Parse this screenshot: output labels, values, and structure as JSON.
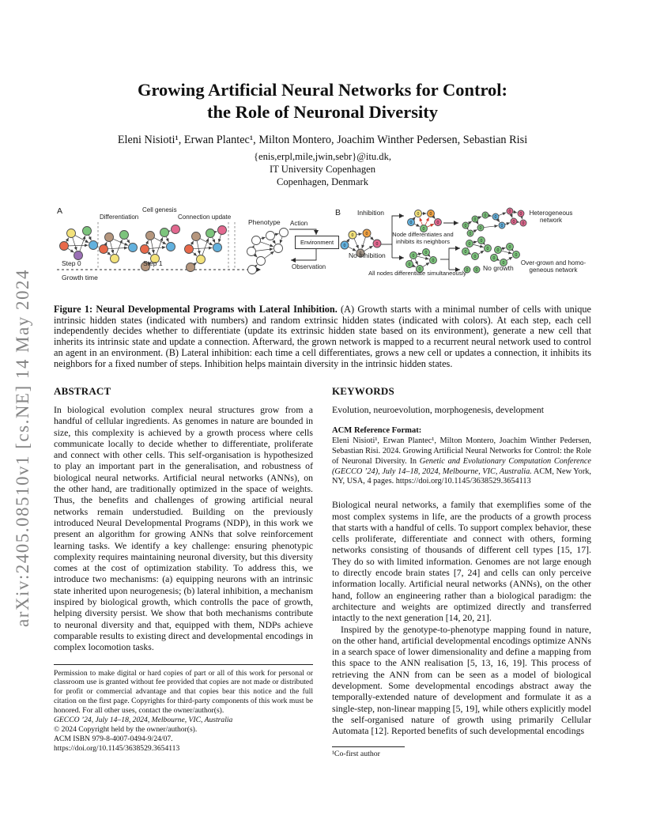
{
  "arxiv_banner": "arXiv:2405.08510v1  [cs.NE]  14 May 2024",
  "header": {
    "title_line1": "Growing Artificial Neural Networks for Control:",
    "title_line2": "the Role of Neuronal Diversity",
    "authors": "Eleni Nisioti¹, Erwan Plantec¹, Milton Montero, Joachim Winther Pedersen, Sebastian Risi",
    "emails": "{enis,erpl,mile,jwin,sebr}@itu.dk,",
    "affiliation": "IT University Copenhagen",
    "city": "Copenhagen, Denmark"
  },
  "figure": {
    "labels": {
      "panel_a": "A",
      "panel_b": "B",
      "differentiation": "Differentiation",
      "cell_genesis": "Cell genesis",
      "connection_update": "Connection update",
      "phenotype": "Phenotype",
      "action": "Action",
      "environment": "Environment",
      "observation": "Observation",
      "step0": "Step 0",
      "step1": "Step 1",
      "growth_time": "Growth time",
      "inhibition": "Inhibition",
      "no_inhibition": "No inhibition",
      "node_diff": "Node  differentiates and\ninhibits its neighbors",
      "all_nodes": "All nodes differentiate simultaneously",
      "heterogeneous": "Heterogeneous\nnetwork",
      "no_growth": "No growth",
      "overgrown": "Over-grown and homo-\ngeneous network"
    },
    "palette": {
      "red": "#e8694a",
      "yellow": "#f3e27b",
      "green": "#7cc47c",
      "blue": "#62b1de",
      "purple": "#9a6fb5",
      "brown": "#b5967d",
      "pink": "#e2688f",
      "orange": "#f0a142",
      "gray": "#a5978a",
      "white": "#ffffff"
    },
    "networks": [
      {
        "name": "step0",
        "r": 5.5,
        "nodes": [
          [
            22,
            38,
            "yellow"
          ],
          [
            42,
            35,
            "green"
          ],
          [
            13,
            54,
            "red"
          ],
          [
            50,
            53,
            "blue"
          ],
          [
            31,
            66,
            "purple"
          ]
        ],
        "edges": [
          [
            2,
            0
          ],
          [
            2,
            4
          ],
          [
            2,
            3
          ],
          [
            0,
            3
          ],
          [
            0,
            4
          ],
          [
            1,
            3
          ],
          [
            4,
            1
          ]
        ]
      },
      {
        "name": "differentiation",
        "r": 5.5,
        "nodes": [
          [
            70,
            43,
            "brown"
          ],
          [
            89,
            40,
            "green"
          ],
          [
            63,
            58,
            "red"
          ],
          [
            100,
            56,
            "blue"
          ],
          [
            77,
            70,
            "yellow"
          ]
        ],
        "edges": [
          [
            2,
            0
          ],
          [
            2,
            4
          ],
          [
            2,
            3
          ],
          [
            0,
            3
          ],
          [
            0,
            4
          ],
          [
            1,
            3
          ],
          [
            4,
            1
          ]
        ]
      },
      {
        "name": "cell-genesis",
        "r": 5.5,
        "nodes": [
          [
            122,
            41,
            "brown"
          ],
          [
            140,
            37,
            "green"
          ],
          [
            154,
            33,
            "pink"
          ],
          [
            115,
            58,
            "red"
          ],
          [
            148,
            55,
            "blue"
          ],
          [
            128,
            70,
            "yellow"
          ],
          [
            116,
            80,
            "brown"
          ]
        ],
        "edges": [
          [
            3,
            0
          ],
          [
            3,
            5
          ],
          [
            3,
            4
          ],
          [
            0,
            4
          ],
          [
            0,
            5
          ],
          [
            1,
            4
          ],
          [
            5,
            1
          ],
          [
            1,
            2
          ],
          [
            6,
            5
          ]
        ]
      },
      {
        "name": "connection-update",
        "r": 5.5,
        "nodes": [
          [
            180,
            42,
            "brown"
          ],
          [
            198,
            38,
            "green"
          ],
          [
            213,
            34,
            "pink"
          ],
          [
            171,
            58,
            "red"
          ],
          [
            207,
            56,
            "blue"
          ],
          [
            186,
            71,
            "yellow"
          ],
          [
            173,
            81,
            "brown"
          ]
        ],
        "edges": [
          [
            3,
            0
          ],
          [
            3,
            5
          ],
          [
            3,
            4
          ],
          [
            0,
            4
          ],
          [
            0,
            5
          ],
          [
            1,
            4
          ],
          [
            5,
            1
          ],
          [
            1,
            2
          ],
          [
            6,
            5
          ],
          [
            2,
            4
          ]
        ]
      },
      {
        "name": "phenotype",
        "r": 5.5,
        "nodes": [
          [
            256,
            47,
            "white"
          ],
          [
            274,
            41,
            "white"
          ],
          [
            291,
            37,
            "white"
          ],
          [
            250,
            61,
            "white"
          ],
          [
            284,
            57,
            "white"
          ],
          [
            262,
            73,
            "white"
          ],
          [
            251,
            84,
            "white"
          ]
        ],
        "edges": [
          [
            3,
            0
          ],
          [
            3,
            5
          ],
          [
            3,
            4
          ],
          [
            0,
            4
          ],
          [
            0,
            1
          ],
          [
            1,
            4
          ],
          [
            5,
            4
          ],
          [
            1,
            2
          ],
          [
            6,
            5
          ],
          [
            2,
            4
          ]
        ]
      },
      {
        "name": "b-initial",
        "r": 5,
        "nodes": [
          [
            378,
            40,
            "yellow",
            "0"
          ],
          [
            396,
            38,
            "orange",
            "0"
          ],
          [
            368,
            53,
            "blue",
            "0"
          ],
          [
            409,
            51,
            "pink",
            "0"
          ],
          [
            388,
            63,
            "gray",
            "0"
          ]
        ],
        "edges": [
          [
            2,
            0
          ],
          [
            2,
            4
          ],
          [
            0,
            1
          ],
          [
            0,
            4
          ],
          [
            1,
            3
          ],
          [
            4,
            3
          ],
          [
            1,
            4
          ]
        ]
      },
      {
        "name": "b-inhibited",
        "r": 4.5,
        "nodes": [
          [
            461,
            13,
            "yellow",
            "0"
          ],
          [
            477,
            13,
            "orange",
            "0"
          ],
          [
            452,
            24,
            "blue",
            "0"
          ],
          [
            486,
            24,
            "pink",
            "0"
          ],
          [
            468,
            32,
            "green",
            "0"
          ]
        ],
        "edges": [
          [
            2,
            0
          ],
          [
            0,
            1
          ],
          [
            1,
            3
          ],
          [
            2,
            4
          ],
          [
            4,
            3
          ]
        ],
        "red_edges": [
          [
            4,
            0
          ],
          [
            4,
            1
          ],
          [
            4,
            3
          ]
        ]
      },
      {
        "name": "b-heterogeneous",
        "r": 4,
        "nodes": [
          [
            521,
            28,
            "green",
            "0"
          ],
          [
            533,
            20,
            "green",
            "0"
          ],
          [
            546,
            15,
            "green",
            "0"
          ],
          [
            527,
            38,
            "green",
            "0"
          ],
          [
            540,
            31,
            "green",
            "0"
          ],
          [
            559,
            17,
            "blue",
            "0"
          ],
          [
            567,
            28,
            "blue",
            "0"
          ],
          [
            577,
            10,
            "pink",
            "0"
          ],
          [
            591,
            13,
            "pink",
            "0"
          ],
          [
            582,
            23,
            "pink",
            "0"
          ],
          [
            594,
            25,
            "pink",
            "0"
          ]
        ],
        "edges": [
          [
            0,
            1
          ],
          [
            1,
            2
          ],
          [
            0,
            3
          ],
          [
            3,
            4
          ],
          [
            1,
            4
          ],
          [
            2,
            5
          ],
          [
            4,
            6
          ],
          [
            5,
            6
          ],
          [
            5,
            7
          ],
          [
            6,
            9
          ],
          [
            7,
            9
          ],
          [
            8,
            10
          ],
          [
            9,
            10
          ],
          [
            7,
            8
          ]
        ]
      },
      {
        "name": "b-all-differentiate",
        "r": 4.5,
        "nodes": [
          [
            455,
            66,
            "green",
            "0"
          ],
          [
            471,
            62,
            "green",
            "0"
          ],
          [
            450,
            77,
            "green",
            "0"
          ],
          [
            480,
            72,
            "green",
            "0"
          ],
          [
            463,
            83,
            "green",
            "0"
          ]
        ],
        "edges": [
          [
            2,
            0
          ],
          [
            0,
            1
          ],
          [
            1,
            3
          ],
          [
            2,
            4
          ],
          [
            4,
            3
          ],
          [
            0,
            4
          ],
          [
            0,
            3
          ]
        ]
      },
      {
        "name": "b-overgrown-1",
        "r": 4.5,
        "nodes": [
          [
            526,
            51,
            "green",
            "0"
          ],
          [
            541,
            47,
            "green",
            "0"
          ],
          [
            521,
            61,
            "green",
            "0"
          ],
          [
            549,
            57,
            "green",
            "0"
          ],
          [
            533,
            67,
            "green",
            "0"
          ]
        ],
        "edges": [
          [
            2,
            0
          ],
          [
            0,
            1
          ],
          [
            1,
            3
          ],
          [
            2,
            4
          ],
          [
            4,
            3
          ],
          [
            0,
            3
          ]
        ]
      },
      {
        "name": "b-overgrown-2",
        "r": 4.5,
        "nodes": [
          [
            562,
            59,
            "green",
            "0"
          ],
          [
            577,
            55,
            "green",
            "0"
          ],
          [
            557,
            69,
            "green",
            "0"
          ],
          [
            585,
            65,
            "green",
            "0"
          ],
          [
            569,
            75,
            "green",
            "0"
          ]
        ],
        "edges": [
          [
            2,
            0
          ],
          [
            0,
            1
          ],
          [
            1,
            3
          ],
          [
            2,
            4
          ],
          [
            4,
            3
          ],
          [
            0,
            3
          ]
        ]
      },
      {
        "name": "b-no-growth",
        "r": 4,
        "nodes": [
          [
            523,
            84,
            "green",
            "0"
          ],
          [
            535,
            84,
            "green",
            "0"
          ]
        ],
        "edges": []
      }
    ]
  },
  "caption": {
    "bold": "Figure 1: Neural Developmental Programs with Lateral Inhibition.",
    "rest": " (A) Growth starts with a minimal number of cells with unique intrinsic hidden states (indicated with numbers) and random extrinsic hidden states (indicated with colors). At each step, each cell independently decides whether to differentiate (update its extrinsic hidden state based on its environment), generate a new cell that inherits its intrinsic state and update a connection. Afterward, the grown network is mapped to a recurrent neural network used to control an agent in an environment. (B) Lateral inhibition: each time a cell differentiates, grows a new cell or updates a connection, it inhibits its neighbors for a fixed number of steps. Inhibition helps maintain diversity in the intrinsic hidden states."
  },
  "abstract": {
    "heading": "ABSTRACT",
    "text": "In biological evolution complex neural structures grow from a handful of cellular ingredients. As genomes in nature are bounded in size, this complexity is achieved by a growth process where cells communicate locally to decide whether to differentiate, proliferate and connect with other cells. This self-organisation is hypothesized to play an important part in the generalisation, and robustness of biological neural networks. Artificial neural networks (ANNs), on the other hand, are traditionally optimized in the space of weights. Thus, the benefits and challenges of growing artificial neural networks remain understudied. Building on the previously introduced Neural Developmental Programs (NDP), in this work we present an algorithm for growing ANNs that solve reinforcement learning tasks. We identify a key challenge: ensuring phenotypic complexity requires maintaining neuronal diversity, but this diversity comes at the cost of optimization stability. To address this, we introduce two mechanisms: (a) equipping neurons with an intrinsic state inherited upon neurogenesis; (b) lateral inhibition, a mechanism inspired by biological growth, which controlls the pace of growth, helping diversity persist. We show that both mechanisms contribute to neuronal diversity and that, equipped with them, NDPs achieve comparable results to existing direct and developmental encodings in complex locomotion tasks."
  },
  "keywords": {
    "heading": "KEYWORDS",
    "text": "Evolution, neuroevolution, morphogenesis, development"
  },
  "reference": {
    "heading": "ACM Reference Format:",
    "pre": "Eleni Nisioti¹, Erwan Plantec¹, Milton Montero, Joachim Winther Pedersen, Sebastian Risi. 2024. Growing Artificial Neural Networks for Control: the Role of Neuronal Diversity. In ",
    "venue": "Genetic and Evolutionary Computation Conference (GECCO ’24), July 14–18, 2024, Melbourne, VIC, Australia.",
    "post": " ACM, New York, NY, USA, 4 pages. https://doi.org/10.1145/3638529.3654113"
  },
  "intro": {
    "para1": "Biological neural networks, a family that exemplifies some of the most complex systems in life, are the products of a growth process that starts with a handful of cells. To support complex behavior, these cells proliferate, differentiate and connect with others, forming networks consisting of thousands of different cell types [15, 17]. They do so with limited information. Genomes are not large enough to directly encode brain states [7, 24] and cells can only perceive information locally. Artificial neural networks (ANNs), on the other hand, follow an engineering rather than a biological paradigm: the architecture and weights are optimized directly and transferred intactly to the next generation [14, 20, 21].",
    "para2": "Inspired by the genotype-to-phenotype mapping found in nature, on the other hand, artificial developmental encodings optimize ANNs in a search space of lower dimensionality and define a mapping from this space to the ANN realisation [5, 13, 16, 19]. This process of retrieving the ANN from can be seen as a model of biological development. Some developmental encodings abstract away the temporally-extended nature of development and formulate it as a single-step, non-linear mapping [5, 19], while others explicitly model the self-organised nature of growth using primarily Cellular Automata [12]. Reported benefits of such developmental encodings"
  },
  "copyright": {
    "permission": "Permission to make digital or hard copies of part or all of this work for personal or classroom use is granted without fee provided that copies are not made or distributed for profit or commercial advantage and that copies bear this notice and the full citation on the first page. Copyrights for third-party components of this work must be honored. For all other uses, contact the owner/author(s).",
    "conference": "GECCO ’24, July 14–18, 2024, Melbourne, VIC, Australia",
    "notice": "© 2024 Copyright held by the owner/author(s).",
    "isbn": "ACM ISBN 979-8-4007-0494-9/24/07.",
    "doi": "https://doi.org/10.1145/3638529.3654113"
  },
  "footnote": "¹Co-first author"
}
